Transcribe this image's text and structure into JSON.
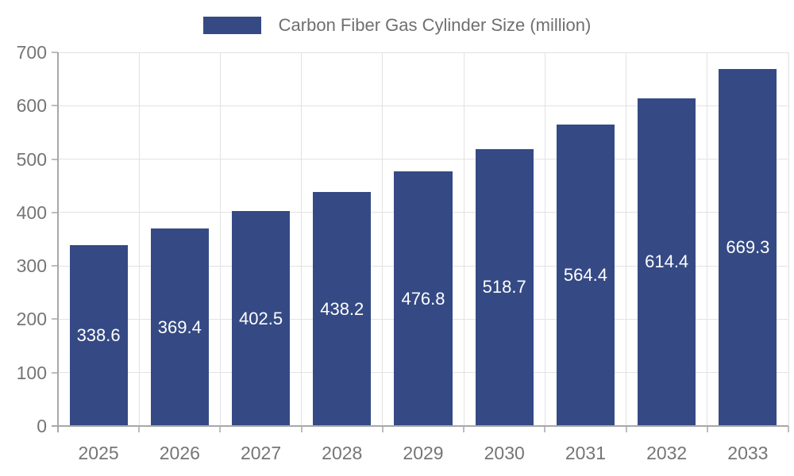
{
  "chart_data": {
    "type": "bar",
    "title": "Carbon Fiber Gas Cylinder Size (million)",
    "categories": [
      "2025",
      "2026",
      "2027",
      "2028",
      "2029",
      "2030",
      "2031",
      "2032",
      "2033"
    ],
    "series": [
      {
        "name": "Carbon Fiber Gas Cylinder Size (million)",
        "values": [
          338.6,
          369.4,
          402.5,
          438.2,
          476.8,
          518.7,
          564.4,
          614.4,
          669.3
        ]
      }
    ],
    "value_labels": [
      "338.6",
      "369.4",
      "402.5",
      "438.2",
      "476.8",
      "518.7",
      "564.4",
      "614.4",
      "669.3"
    ],
    "xlabel": "",
    "ylabel": "",
    "ylim": [
      0,
      700
    ],
    "ytick_interval": 100,
    "ytick_labels": [
      "0",
      "100",
      "200",
      "300",
      "400",
      "500",
      "600",
      "700"
    ],
    "grid": true,
    "legend_position": "top-center",
    "colors": {
      "bar": "#354a84",
      "grid": "#e2e2e2",
      "axis": "#a8a8a8",
      "tick": "#bdbdbd",
      "tick_label": "#757575",
      "title": "#6f6f6f",
      "value_label": "#ffffff",
      "background": "#ffffff"
    }
  }
}
